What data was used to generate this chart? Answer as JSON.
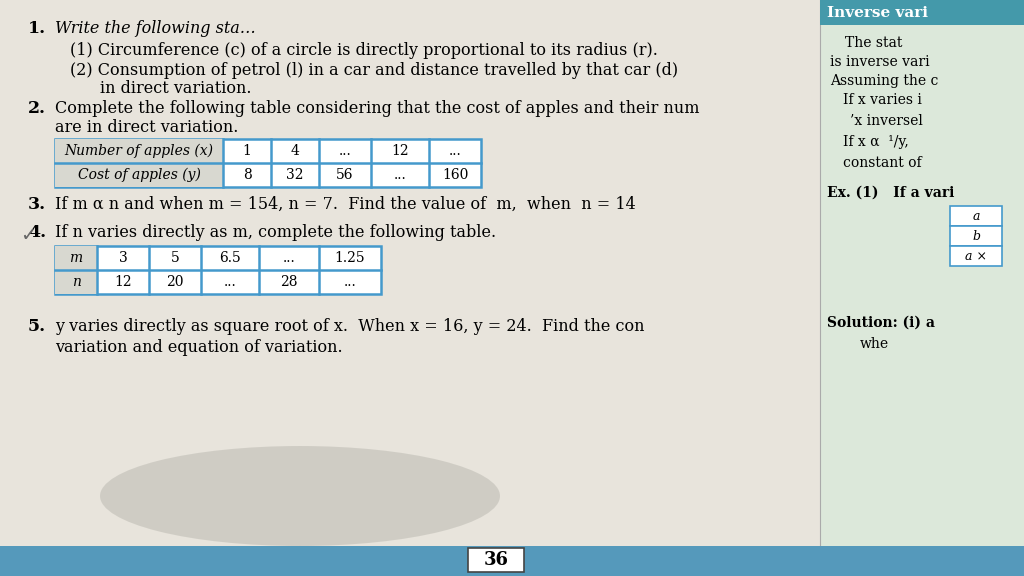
{
  "bg_color": "#d8d4cc",
  "page_bg": "#e8e4dc",
  "right_panel_bg": "#dde8dc",
  "border_color": "#4499cc",
  "bottom_bar_color": "#5599bb",
  "page_number": "36",
  "q1_label": "1.",
  "q1_heading": "Write the following sta",
  "q1_1": "(1) Circumference (c) of a circle is directly proportional to its radius (r).",
  "q1_2": "(2) Consumption of petrol (l) in a car and distance travelled by that car (d)",
  "q1_3": "in direct variation.",
  "q2_label": "2.",
  "q2_text1": "Complete the following table considering that the cost of apples and their num",
  "q2_text2": "are in direct variation.",
  "t1_r1": [
    "Number of apples (x)",
    "1",
    "4",
    "...",
    "12",
    "..."
  ],
  "t1_r2": [
    "Cost of apples (y)",
    "8",
    "32",
    "56",
    "...",
    "160"
  ],
  "q3_label": "3.",
  "q3_text": "If m α n and when m = 154, n = 7.  Find the value of  m,  when  n = 14",
  "q4_label": "4.",
  "q4_text": "If n varies directly as m, complete the following table.",
  "t2_r1": [
    "m",
    "3",
    "5",
    "6.5",
    "...",
    "1.25"
  ],
  "t2_r2": [
    "n",
    "12",
    "20",
    "...",
    "28",
    "..."
  ],
  "q5_label": "5.",
  "q5_text1": "y varies directly as square root of x.  When x = 16, y = 24.  Find the con",
  "q5_text2": "variation and equation of variation.",
  "rp_title": "Inverse vari",
  "rp_l1": "The stat",
  "rp_l2": "is inverse vari",
  "rp_l3": "Assuming the c",
  "rp_l4": "If x varies i",
  "rp_l5": "’x inversel",
  "rp_l6": "If x α",
  "rp_l7": "constant of",
  "rp_ex": "Ex. (1)   If a vari",
  "rp_t1": [
    "a"
  ],
  "rp_t2": [
    "b"
  ],
  "rp_t3": [
    "a ×"
  ],
  "rp_b1": "Solution: (i) a",
  "rp_b2": "whe"
}
